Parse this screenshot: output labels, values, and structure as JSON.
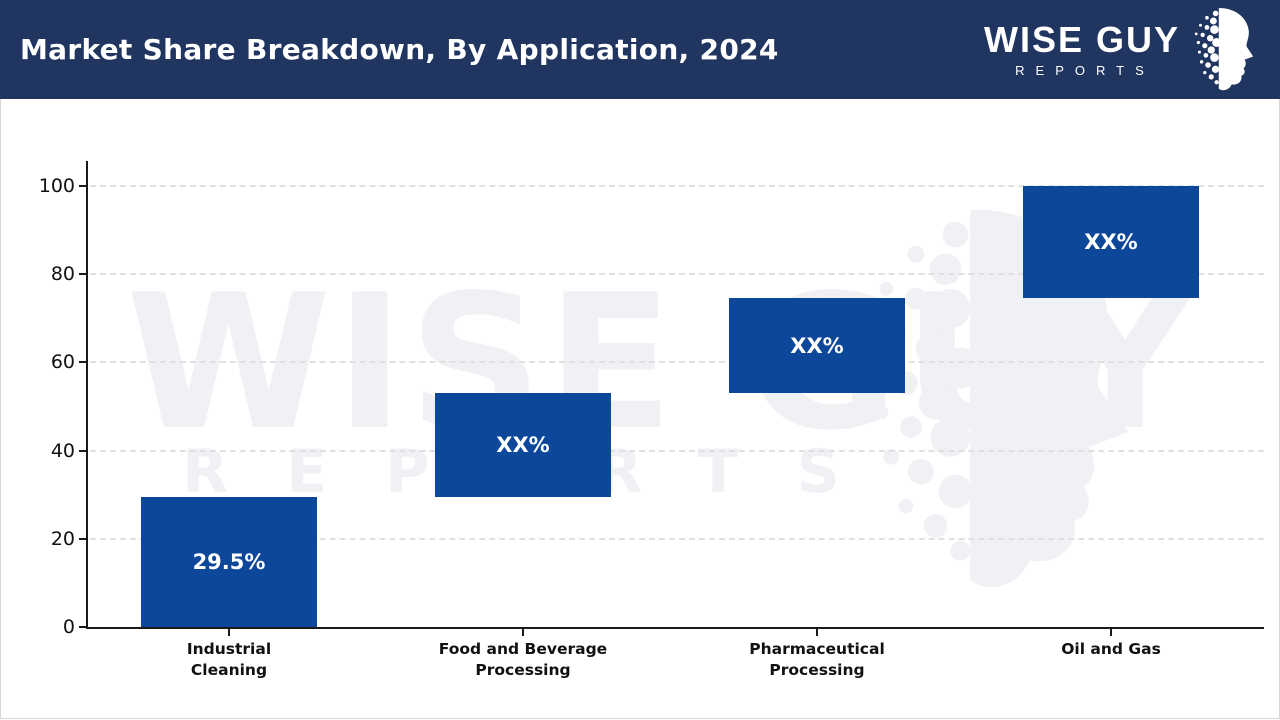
{
  "header": {
    "title": "Market Share Breakdown, By Application, 2024",
    "background_color": "#213561",
    "logo": {
      "line1": "WISE GUY",
      "line2": "REPORTS"
    }
  },
  "watermark": {
    "line1": "WISE GUY",
    "line2": "REPORTS"
  },
  "chart_data": {
    "type": "bar",
    "subtype": "waterfall",
    "title": "Market Share Breakdown, By Application, 2024",
    "categories": [
      [
        "Industrial",
        "Cleaning"
      ],
      [
        "Food and Beverage",
        "Processing"
      ],
      [
        "Pharmaceutical",
        "Processing"
      ],
      [
        "Oil and Gas"
      ]
    ],
    "series": [
      {
        "name": "Market Share",
        "segments": [
          {
            "category": "Industrial Cleaning",
            "start": 0,
            "end": 29.5,
            "label": "29.5%"
          },
          {
            "category": "Food and Beverage Processing",
            "start": 29.5,
            "end": 53,
            "label": "XX%"
          },
          {
            "category": "Pharmaceutical Processing",
            "start": 53,
            "end": 74.5,
            "label": "XX%"
          },
          {
            "category": "Oil and Gas",
            "start": 74.5,
            "end": 100,
            "label": "XX%"
          }
        ]
      }
    ],
    "xlabel": "",
    "ylabel": "",
    "ylim": [
      0,
      100
    ],
    "yticks": [
      0,
      20,
      40,
      60,
      80,
      100
    ],
    "grid": "horizontal-dashed",
    "legend": "none",
    "bar_color": "#0d4799",
    "bar_label_color": "#ffffff",
    "gridline_color": "#e0e0e0",
    "axis_color": "#1a1a1a"
  }
}
